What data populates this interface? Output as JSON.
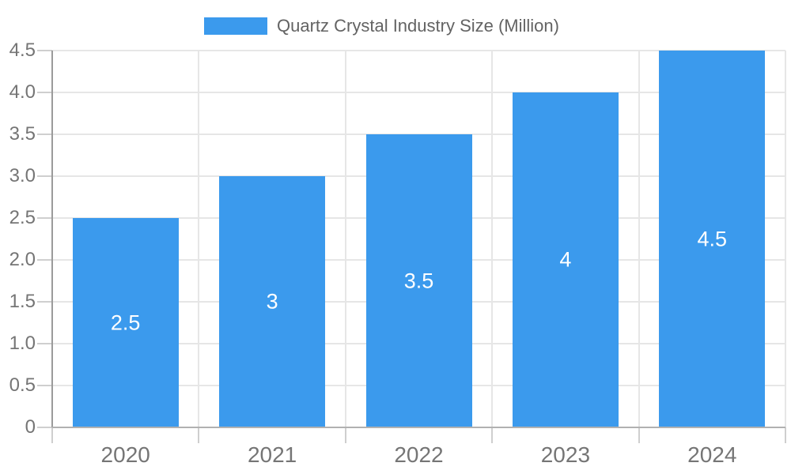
{
  "legend": {
    "label": "Quartz Crystal Industry Size (Million)"
  },
  "chart_data": {
    "type": "bar",
    "title": "Quartz Crystal Industry Size (Million)",
    "categories": [
      "2020",
      "2021",
      "2022",
      "2023",
      "2024"
    ],
    "values": [
      2.5,
      3,
      3.5,
      4,
      4.5
    ],
    "bar_labels": [
      "2.5",
      "3",
      "3.5",
      "4",
      "4.5"
    ],
    "y_ticks": [
      0,
      0.5,
      1,
      1.5,
      2,
      2.5,
      3,
      3.5,
      4,
      4.5
    ],
    "y_tick_labels": [
      "0",
      "0.5",
      "1.0",
      "1.5",
      "2.0",
      "2.5",
      "3.0",
      "3.5",
      "4.0",
      "4.5"
    ],
    "ylim": [
      0,
      4.5
    ],
    "xlabel": "",
    "ylabel": "",
    "grid": true,
    "legend_position": "top",
    "colors": {
      "bar": "#3b9aed",
      "gridline": "#e6e6e6",
      "y_axis_line": "#9b9b9b",
      "x_axis_line": "#b1b1b1",
      "tick": "#cfcfcf",
      "axis_text": "#757575",
      "legend_text": "#636363",
      "bar_label_text": "#ffffff",
      "background": "#ffffff"
    }
  }
}
